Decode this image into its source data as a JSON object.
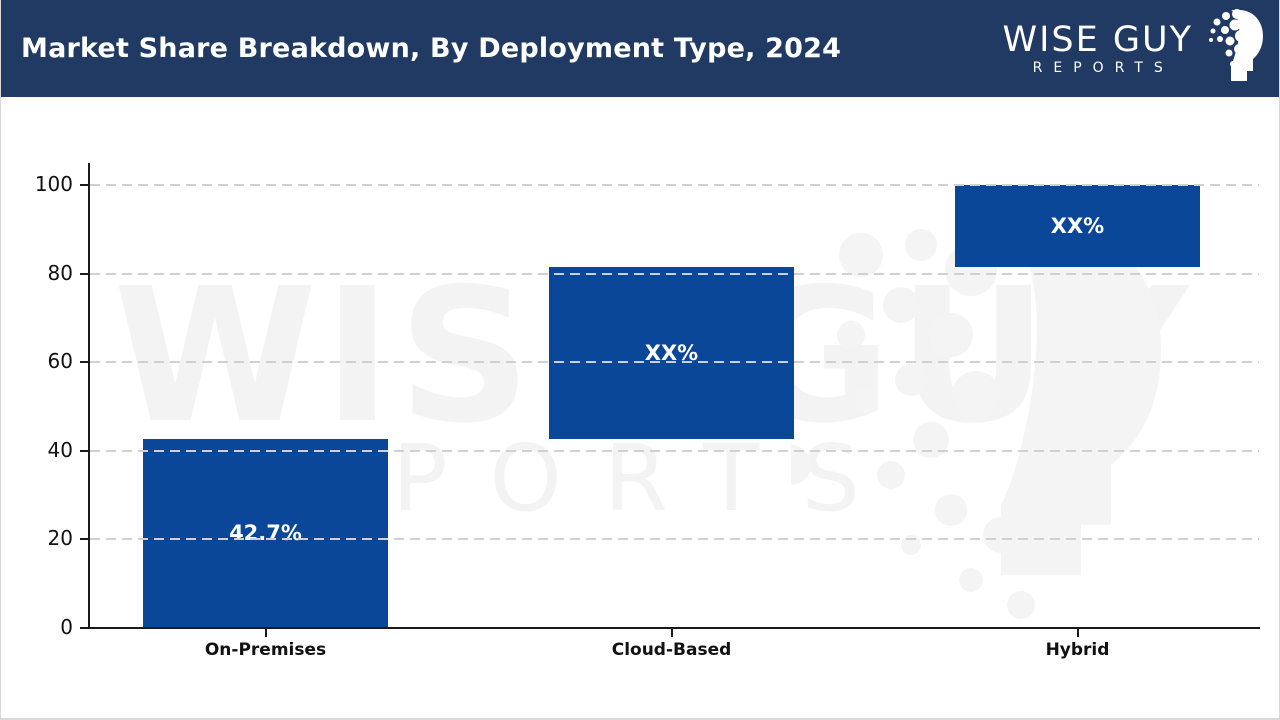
{
  "header": {
    "title": "Market Share Breakdown, By Deployment Type, 2024",
    "bg_color": "#203a64",
    "logo": {
      "line1": "WISE GUY",
      "line2": "REPORTS"
    }
  },
  "watermark": {
    "line1": "WISE GUY",
    "line2": "REPORTS"
  },
  "chart_data": {
    "type": "bar",
    "subtype": "waterfall",
    "title": "Market Share Breakdown, By Deployment Type, 2024",
    "categories": [
      "On-Premises",
      "Cloud-Based",
      "Hybrid"
    ],
    "series": [
      {
        "name": "Market Share",
        "segments": [
          {
            "category": "On-Premises",
            "start": 0,
            "end": 42.7,
            "label": "42.7%"
          },
          {
            "category": "Cloud-Based",
            "start": 42.7,
            "end": 81.6,
            "label": "XX%"
          },
          {
            "category": "Hybrid",
            "start": 81.6,
            "end": 100,
            "label": "XX%"
          }
        ]
      }
    ],
    "xlabel": "",
    "ylabel": "",
    "ylim": [
      0,
      100
    ],
    "yticks": [
      0,
      20,
      40,
      60,
      80,
      100
    ],
    "grid": true,
    "grid_style": "dashed",
    "legend": "none",
    "bar_color": "#0b4798",
    "bar_label_color": "#ffffff",
    "gridline_color": "#d0d0d0",
    "axis_color": "#1a1a1a"
  }
}
